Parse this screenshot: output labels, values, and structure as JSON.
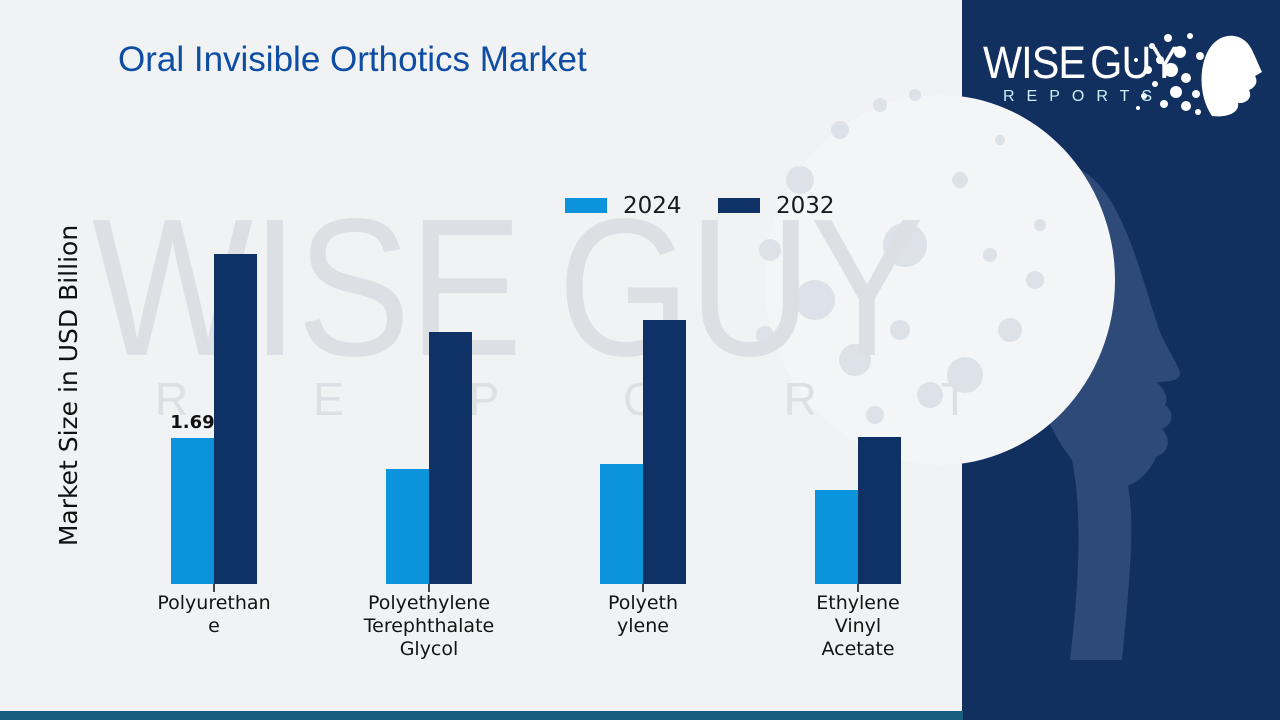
{
  "title": "Oral Invisible Orthotics Market",
  "y_axis_label": "Market Size in USD Billion",
  "legend": {
    "items": [
      {
        "label": "2024",
        "color": "#0b94dc"
      },
      {
        "label": "2032",
        "color": "#0e3166"
      }
    ]
  },
  "watermark": {
    "line1": "WISE GUY",
    "line2": "R E P O R T S"
  },
  "logo": {
    "line1": "WISE GUY",
    "line2": "REPORTS"
  },
  "data_label": {
    "text": "1.69",
    "series_index": 0,
    "category_index": 0
  },
  "colors": {
    "background": "#f0f2f3",
    "panel_navy": "#11305f",
    "face_silhouette": "#2d4a78",
    "circle_light": "#f3f5f7",
    "circle_spots": "#dde2e9",
    "title_blue": "#0e4da3",
    "teal_strip": "#175f7d",
    "bar_2024": "#0b94dc",
    "bar_2032": "#0e3166"
  },
  "chart_data": {
    "type": "bar",
    "title": "Oral Invisible Orthotics Market",
    "ylabel": "Market Size in USD Billion",
    "xlabel": "",
    "ylim": [
      0,
      4.2
    ],
    "grid": false,
    "legend_position": "top",
    "categories": [
      "Polyurethane",
      "Polyethylene Terephthalate Glycol",
      "Polyethylene",
      "Ethylene Vinyl Acetate"
    ],
    "category_lines": [
      [
        "Polyurethan",
        "e"
      ],
      [
        "Polyethylene",
        "Terephthalate",
        "Glycol"
      ],
      [
        "Polyeth",
        "ylene"
      ],
      [
        "Ethylene",
        "Vinyl",
        "Acetate"
      ]
    ],
    "series": [
      {
        "name": "2024",
        "color": "#0b94dc",
        "values": [
          1.69,
          1.33,
          1.39,
          1.09
        ]
      },
      {
        "name": "2032",
        "color": "#0e3166",
        "values": [
          3.82,
          2.92,
          3.05,
          1.7
        ]
      }
    ],
    "annotations": [
      {
        "text": "1.69",
        "series": "2024",
        "category": "Polyurethane"
      }
    ]
  }
}
